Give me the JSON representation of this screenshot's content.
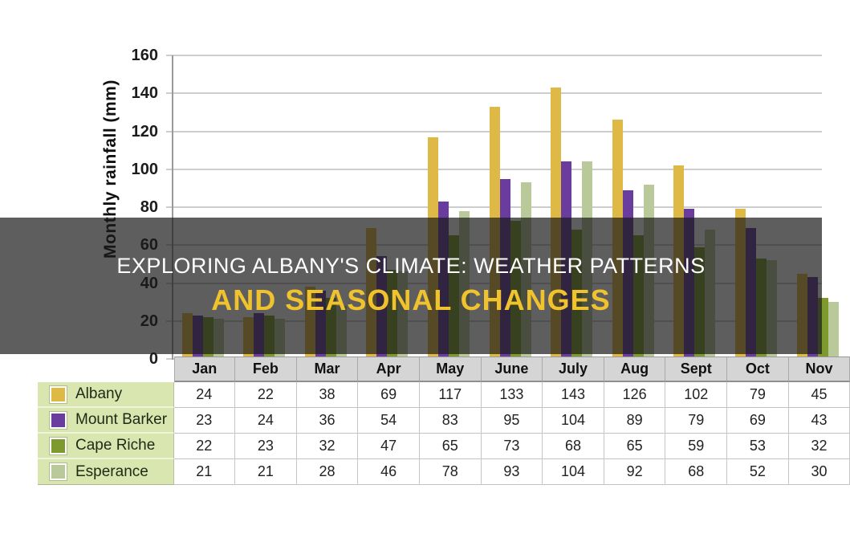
{
  "banner": {
    "line1": "EXPLORING ALBANY'S CLIMATE: WEATHER PATTERNS",
    "line2": "AND SEASONAL CHANGES",
    "line1_color": "#ffffff",
    "line2_color": "#f0c22e",
    "background": "rgba(25,25,25,0.70)"
  },
  "chart_data": {
    "type": "bar",
    "title": "",
    "xlabel": "",
    "ylabel": "Monthly rainfall (mm)",
    "ylim": [
      0,
      160
    ],
    "yticks": [
      0,
      20,
      40,
      60,
      80,
      100,
      120,
      140,
      160
    ],
    "grid": true,
    "legend_position": "left-of-table",
    "categories": [
      "Jan",
      "Feb",
      "Mar",
      "Apr",
      "May",
      "June",
      "July",
      "Aug",
      "Sept",
      "Oct",
      "Nov"
    ],
    "series": [
      {
        "name": "Albany",
        "color": "#dfb945",
        "values": [
          24,
          22,
          38,
          69,
          117,
          133,
          143,
          126,
          102,
          79,
          45
        ]
      },
      {
        "name": "Mount Barker",
        "color": "#6a3c9e",
        "values": [
          23,
          24,
          36,
          54,
          83,
          95,
          104,
          89,
          79,
          69,
          43
        ]
      },
      {
        "name": "Cape Riche",
        "color": "#7e9a2e",
        "values": [
          22,
          23,
          32,
          47,
          65,
          73,
          68,
          65,
          59,
          53,
          32
        ]
      },
      {
        "name": "Esperance",
        "color": "#bac999",
        "values": [
          21,
          21,
          28,
          46,
          78,
          93,
          104,
          92,
          68,
          52,
          30
        ]
      }
    ],
    "note_visible_truncation": "Nov column partially cut off at right edge"
  },
  "colors": {
    "gridline": "#cdcdcd",
    "axis": "#9a9a9a",
    "table_header_bg": "#d5d5d5",
    "legend_bg": "#d9e6b0"
  }
}
